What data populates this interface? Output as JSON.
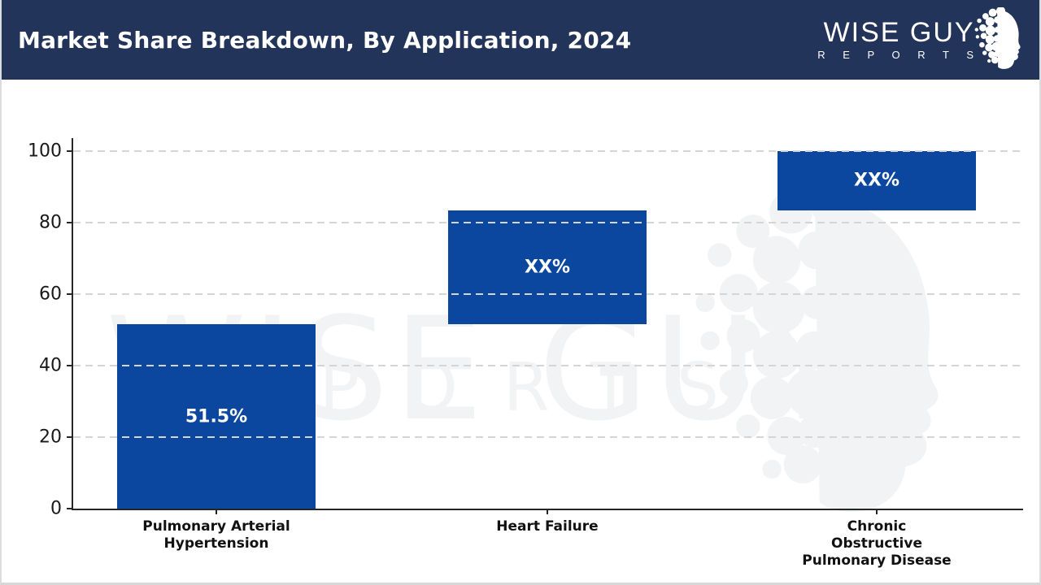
{
  "header": {
    "title": "Market Share Breakdown, By Application, 2024",
    "logo": {
      "line1": "WISE GUY",
      "line2": "R E P O R T S"
    }
  },
  "watermark": {
    "line1": "WISE GUY",
    "line2": "REPORTS"
  },
  "chart_data": {
    "type": "bar",
    "subtype": "floating-waterfall",
    "title": "Market Share Breakdown, By Application, 2024",
    "categories": [
      "Pulmonary Arterial Hypertension",
      "Heart Failure",
      "Chronic Obstructive Pulmonary Disease"
    ],
    "category_lines": [
      [
        "Pulmonary Arterial",
        "Hypertension"
      ],
      [
        "Heart Failure"
      ],
      [
        "Chronic",
        "Obstructive",
        "Pulmonary Disease"
      ]
    ],
    "bars": [
      {
        "category": "Pulmonary Arterial Hypertension",
        "start": 0,
        "end": 51.5,
        "label": "51.5%"
      },
      {
        "category": "Heart Failure",
        "start": 51.5,
        "end": 83.5,
        "label": "XX%"
      },
      {
        "category": "Chronic Obstructive Pulmonary Disease",
        "start": 83.5,
        "end": 100,
        "label": "XX%"
      }
    ],
    "xlabel": "",
    "ylabel": "",
    "ylim": [
      0,
      100
    ],
    "yticks": [
      0,
      20,
      40,
      60,
      80,
      100
    ],
    "grid": "horizontal-dashed",
    "legend": "none",
    "colors": {
      "bar": "#0b479e",
      "grid": "#d5d5d5",
      "axis": "#262626",
      "bar_label_text": "#ffffff",
      "tick_text": "#1a1a1a",
      "header_bg": "#223459",
      "watermark": "#f2f3f5",
      "page_border": "#dcdcdc"
    }
  }
}
